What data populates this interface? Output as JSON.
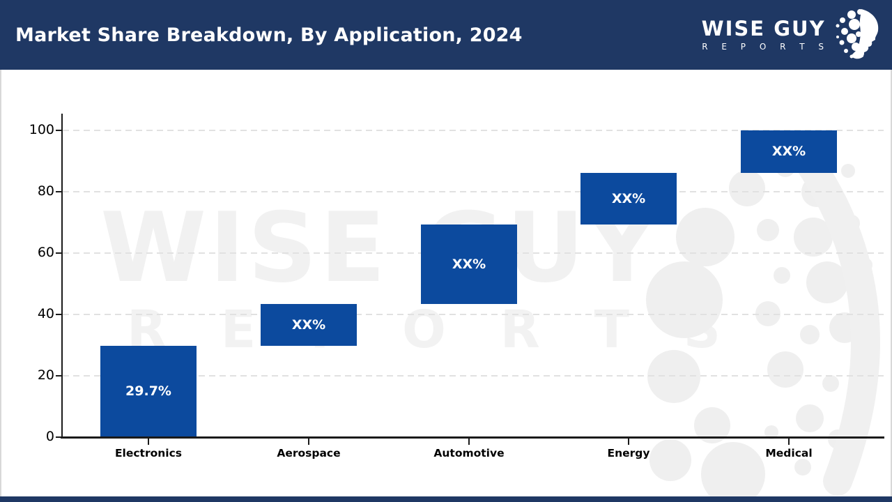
{
  "header": {
    "title": "Market Share Breakdown, By Application, 2024",
    "brand": {
      "line1": "WISE GUY",
      "line2": "R E P O R T S"
    },
    "bg_color": "#1f3864",
    "text_color": "#ffffff"
  },
  "watermark": {
    "line1": "WISE GUY",
    "line2": "R E P O R T S"
  },
  "chart_data": {
    "type": "bar",
    "subtype": "waterfall",
    "title": "Market Share Breakdown, By Application, 2024",
    "categories": [
      "Electronics",
      "Aerospace",
      "Automotive",
      "Energy",
      "Medical"
    ],
    "series": [
      {
        "name": "Market Share (%)",
        "segments": [
          {
            "category": "Electronics",
            "start": 0,
            "end": 29.7,
            "label": "29.7%"
          },
          {
            "category": "Aerospace",
            "start": 29.7,
            "end": 43.3,
            "label": "XX%"
          },
          {
            "category": "Automotive",
            "start": 43.4,
            "end": 69.1,
            "label": "XX%"
          },
          {
            "category": "Energy",
            "start": 69.1,
            "end": 86.0,
            "label": "XX%"
          },
          {
            "category": "Medical",
            "start": 86.1,
            "end": 100,
            "label": "XX%"
          }
        ]
      }
    ],
    "xlabel": "",
    "ylabel": "",
    "ylim": [
      0,
      100
    ],
    "yticks": [
      0,
      20,
      40,
      60,
      80,
      100
    ],
    "grid": "horizontal-dashed",
    "legend": "none",
    "bar_color": "#0c4a9e",
    "bar_label_color": "#ffffff",
    "axis_color": "#1a1a1a",
    "gridline_color": "#e1e1e1"
  }
}
